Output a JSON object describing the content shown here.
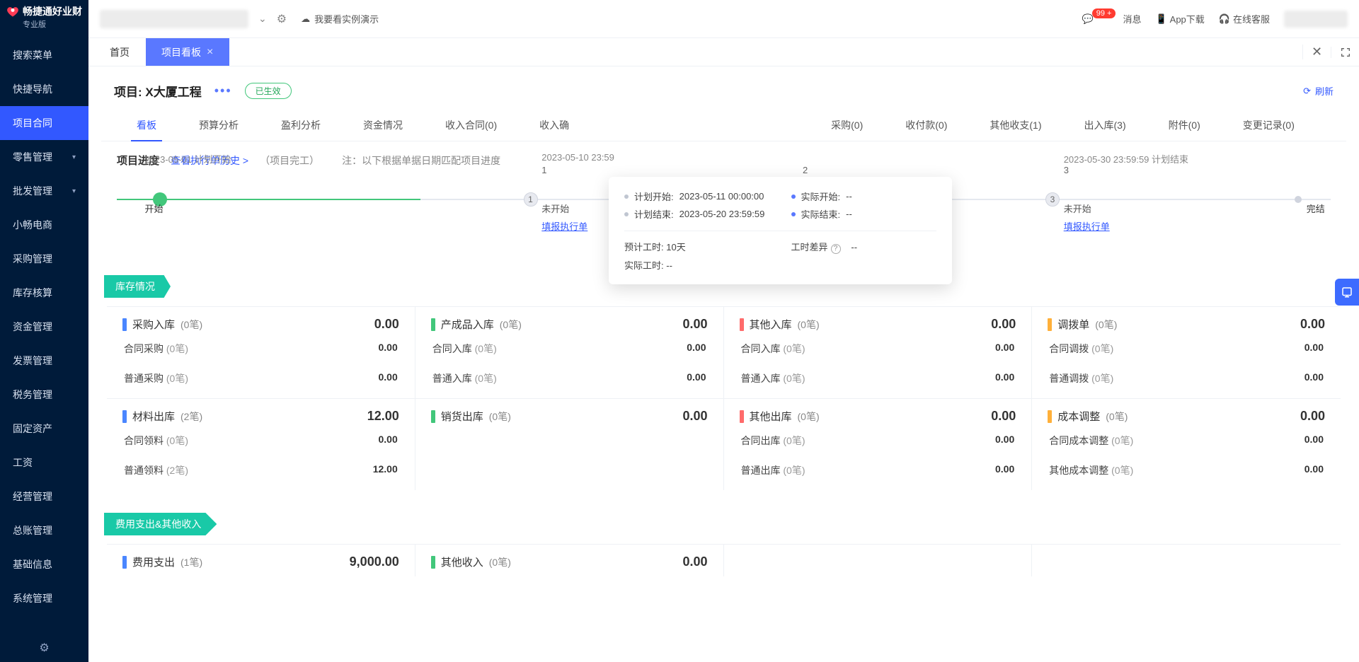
{
  "brand": {
    "name": "畅捷通好业财",
    "edition": "专业版"
  },
  "sidebar": {
    "items": [
      {
        "label": "搜索菜单"
      },
      {
        "label": "快捷导航"
      },
      {
        "label": "项目合同",
        "active": true
      },
      {
        "label": "零售管理",
        "expand": true
      },
      {
        "label": "批发管理",
        "expand": true
      },
      {
        "label": "小畅电商"
      },
      {
        "label": "采购管理"
      },
      {
        "label": "库存核算"
      },
      {
        "label": "资金管理"
      },
      {
        "label": "发票管理"
      },
      {
        "label": "税务管理"
      },
      {
        "label": "固定资产"
      },
      {
        "label": "工资"
      },
      {
        "label": "经营管理"
      },
      {
        "label": "总账管理"
      },
      {
        "label": "基础信息"
      },
      {
        "label": "系统管理"
      }
    ]
  },
  "topbar": {
    "demo": "我要看实例演示",
    "msg": "消息",
    "msg_badge": "99 +",
    "app": "App下载",
    "cs": "在线客服"
  },
  "tabs": {
    "home": "首页",
    "active": "项目看板"
  },
  "header": {
    "title_label": "项目:",
    "title_value": "X大厦工程",
    "status": "已生效",
    "refresh": "刷新"
  },
  "subtabs": [
    "看板",
    "预算分析",
    "盈利分析",
    "资金情况",
    "收入合同(0)",
    "收入确",
    "",
    "采购(0)",
    "收付款(0)",
    "其他收支(1)",
    "出入库(3)",
    "附件(0)",
    "变更记录(0)"
  ],
  "progress": {
    "title": "项目进度",
    "link": "查看执行单历史 >",
    "link_suffix": "（项目完工）",
    "note": "注：以下根据单据日期匹配项目进度",
    "start_date": "2023-05-01 计划开始",
    "m1_date": "2023-05-10 23:59",
    "m3_date": "2023-05-30 23:59:59 计划结束",
    "n1": "1",
    "n2": "2",
    "n3": "3",
    "state": "未开始",
    "fill": "填报执行单",
    "start_lbl": "开始",
    "end_lbl": "完结"
  },
  "popover": {
    "plan_start_l": "计划开始:",
    "plan_start_v": "2023-05-11 00:00:00",
    "plan_end_l": "计划结束:",
    "plan_end_v": "2023-05-20 23:59:59",
    "real_start_l": "实际开始:",
    "real_start_v": "--",
    "real_end_l": "实际结束:",
    "real_end_v": "--",
    "est_l": "预计工时:",
    "est_v": "10天",
    "diff_l": "工时差异",
    "diff_v": "--",
    "act_l": "实际工时:",
    "act_v": "--"
  },
  "sec1": {
    "title": "库存情况",
    "cards": [
      {
        "tag": "blue",
        "title": "采购入库",
        "cnt": "(0笔)",
        "val": "0.00",
        "subs": [
          {
            "n": "合同采购",
            "c": "(0笔)",
            "v": "0.00"
          },
          {
            "n": "普通采购",
            "c": "(0笔)",
            "v": "0.00"
          }
        ]
      },
      {
        "tag": "green",
        "title": "产成品入库",
        "cnt": "(0笔)",
        "val": "0.00",
        "subs": [
          {
            "n": "合同入库",
            "c": "(0笔)",
            "v": "0.00"
          },
          {
            "n": "普通入库",
            "c": "(0笔)",
            "v": "0.00"
          }
        ]
      },
      {
        "tag": "red",
        "title": "其他入库",
        "cnt": "(0笔)",
        "val": "0.00",
        "subs": [
          {
            "n": "合同入库",
            "c": "(0笔)",
            "v": "0.00"
          },
          {
            "n": "普通入库",
            "c": "(0笔)",
            "v": "0.00"
          }
        ]
      },
      {
        "tag": "orange",
        "title": "调拨单",
        "cnt": "(0笔)",
        "val": "0.00",
        "subs": [
          {
            "n": "合同调拨",
            "c": "(0笔)",
            "v": "0.00"
          },
          {
            "n": "普通调拨",
            "c": "(0笔)",
            "v": "0.00"
          }
        ]
      }
    ],
    "cards2": [
      {
        "tag": "blue",
        "title": "材料出库",
        "cnt": "(2笔)",
        "val": "12.00",
        "subs": [
          {
            "n": "合同领料",
            "c": "(0笔)",
            "v": "0.00"
          },
          {
            "n": "普通领料",
            "c": "(2笔)",
            "v": "12.00"
          }
        ]
      },
      {
        "tag": "green",
        "title": "销货出库",
        "cnt": "(0笔)",
        "val": "0.00",
        "subs": []
      },
      {
        "tag": "red",
        "title": "其他出库",
        "cnt": "(0笔)",
        "val": "0.00",
        "subs": [
          {
            "n": "合同出库",
            "c": "(0笔)",
            "v": "0.00"
          },
          {
            "n": "普通出库",
            "c": "(0笔)",
            "v": "0.00"
          }
        ]
      },
      {
        "tag": "orange",
        "title": "成本调整",
        "cnt": "(0笔)",
        "val": "0.00",
        "subs": [
          {
            "n": "合同成本调整",
            "c": "(0笔)",
            "v": "0.00"
          },
          {
            "n": "其他成本调整",
            "c": "(0笔)",
            "v": "0.00"
          }
        ]
      }
    ]
  },
  "sec2": {
    "title": "费用支出&其他收入",
    "cards": [
      {
        "tag": "blue",
        "title": "费用支出",
        "cnt": "(1笔)",
        "val": "9,000.00"
      },
      {
        "tag": "green",
        "title": "其他收入",
        "cnt": "(0笔)",
        "val": "0.00"
      }
    ]
  }
}
